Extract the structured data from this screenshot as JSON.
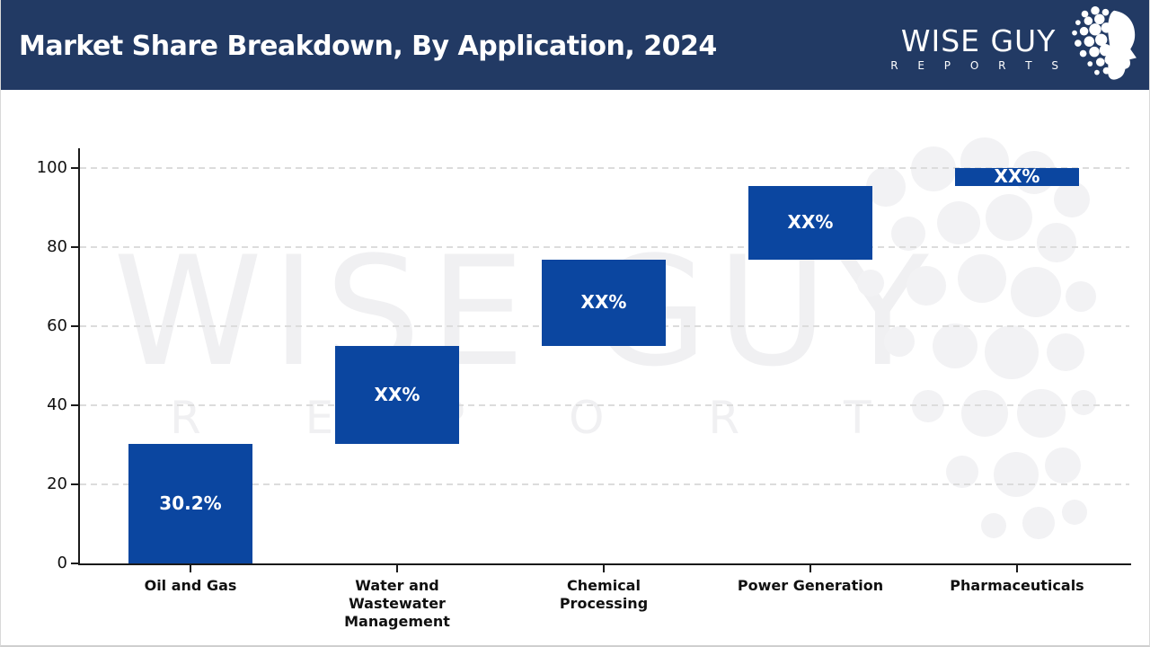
{
  "header": {
    "title": "Market Share Breakdown, By Application, 2024",
    "bg_color": "#223a64",
    "logo": {
      "wordmark": "WISE GUY",
      "subtext": "R E P O R T S"
    }
  },
  "watermark": {
    "wordmark": "WISE GUY",
    "subtext": "R E P O R T S"
  },
  "chart_data": {
    "type": "bar",
    "variant": "floating-segment-waterfall",
    "title": "Market Share Breakdown, By Application, 2024",
    "xlabel": "",
    "ylabel": "",
    "ylim": [
      0,
      105
    ],
    "yticks": [
      0,
      20,
      40,
      60,
      80,
      100
    ],
    "grid": "horizontal-dashed",
    "legend": "none",
    "bar_color": "#0b46a0",
    "bar_label_color": "#ffffff",
    "categories": [
      "Oil and Gas",
      "Water and Wastewater Management",
      "Chemical Processing",
      "Power Generation",
      "Pharmaceuticals"
    ],
    "category_label_lines": [
      [
        "Oil and Gas"
      ],
      [
        "Water and",
        "Wastewater",
        "Management"
      ],
      [
        "Chemical",
        "Processing"
      ],
      [
        "Power Generation"
      ],
      [
        "Pharmaceuticals"
      ]
    ],
    "segments": [
      {
        "category": "Oil and Gas",
        "start": 0,
        "end": 30.2,
        "label": "30.2%"
      },
      {
        "category": "Water and Wastewater Management",
        "start": 30.2,
        "end": 55.0,
        "label": "XX%"
      },
      {
        "category": "Chemical Processing",
        "start": 55.0,
        "end": 76.8,
        "label": "XX%"
      },
      {
        "category": "Power Generation",
        "start": 76.8,
        "end": 95.5,
        "label": "XX%"
      },
      {
        "category": "Pharmaceuticals",
        "start": 95.5,
        "end": 100.0,
        "label": "XX%"
      }
    ]
  }
}
